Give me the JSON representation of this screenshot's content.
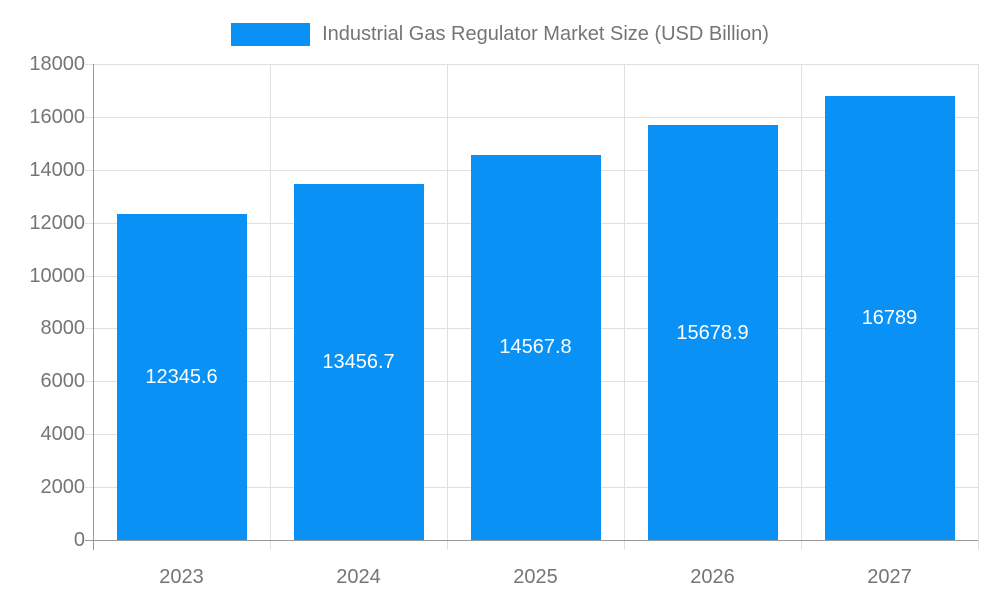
{
  "colors": {
    "bar": "#0991f5",
    "axis_line": "#999999",
    "grid_line": "#e0e0e0",
    "axis_text": "#757575",
    "bar_label_text": "#ffffff",
    "background": "#ffffff"
  },
  "legend": {
    "label": "Industrial Gas Regulator Market Size (USD Billion)"
  },
  "chart_data": {
    "type": "bar",
    "title": "Industrial Gas Regulator Market Size (USD Billion)",
    "categories": [
      "2023",
      "2024",
      "2025",
      "2026",
      "2027"
    ],
    "values": [
      12345.6,
      13456.7,
      14567.8,
      15678.9,
      16789
    ],
    "value_labels": [
      "12345.6",
      "13456.7",
      "14567.8",
      "15678.9",
      "16789"
    ],
    "xlabel": "",
    "ylabel": "",
    "ylim": [
      0,
      18000
    ],
    "yticks": [
      0,
      2000,
      4000,
      6000,
      8000,
      10000,
      12000,
      14000,
      16000,
      18000
    ],
    "grid": true,
    "legend_position": "top",
    "bar_label_position": "middle"
  }
}
